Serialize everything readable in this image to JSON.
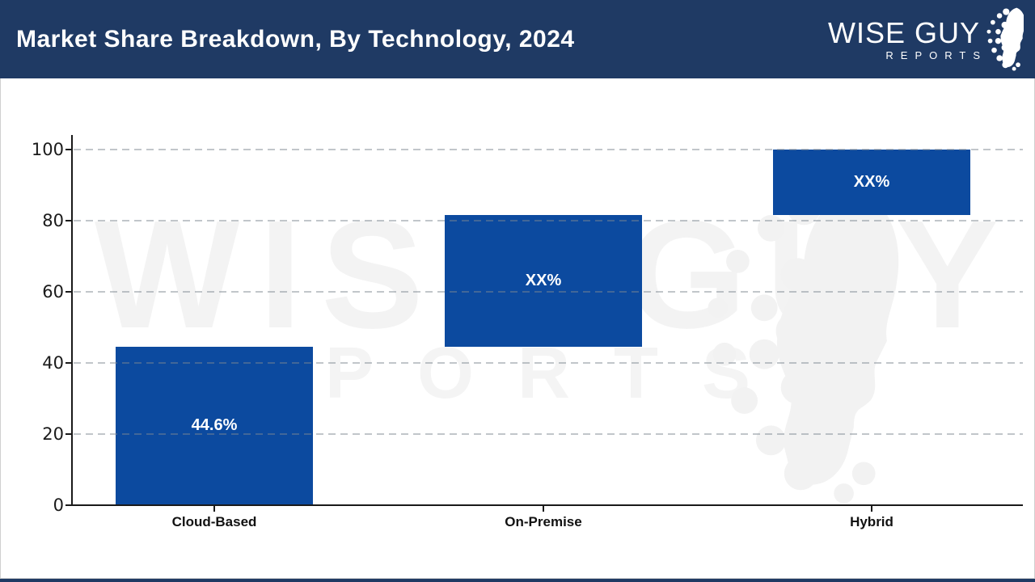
{
  "header": {
    "title": "Market Share Breakdown, By Technology, 2024",
    "bg_color": "#1f3a64",
    "logo": {
      "line1": "WISE GUY",
      "line2": "REPORTS"
    }
  },
  "watermark": {
    "line1": "WISE GUY",
    "line2": "REPORTS"
  },
  "chart_data": {
    "type": "bar",
    "subtype": "stacked-floating-segments",
    "title": "Market Share Breakdown, By Technology, 2024",
    "categories": [
      "Cloud-Based",
      "On-Premise",
      "Hybrid"
    ],
    "series": [
      {
        "name": "Cloud-Based",
        "start": 0,
        "end": 44.6,
        "label": "44.6%"
      },
      {
        "name": "On-Premise",
        "start": 44.6,
        "end": 81.5,
        "label": "XX%"
      },
      {
        "name": "Hybrid",
        "start": 81.5,
        "end": 100,
        "label": "XX%"
      }
    ],
    "ylim": [
      0,
      100
    ],
    "yticks": [
      0,
      20,
      40,
      60,
      80,
      100
    ],
    "xlabel": "",
    "ylabel": "",
    "grid": "horizontal-dashed",
    "legend": "none",
    "bar_color": "#0c4a9f",
    "bar_label_color": "#ffffff"
  },
  "footer": {
    "bar_color": "#1f3a64"
  }
}
